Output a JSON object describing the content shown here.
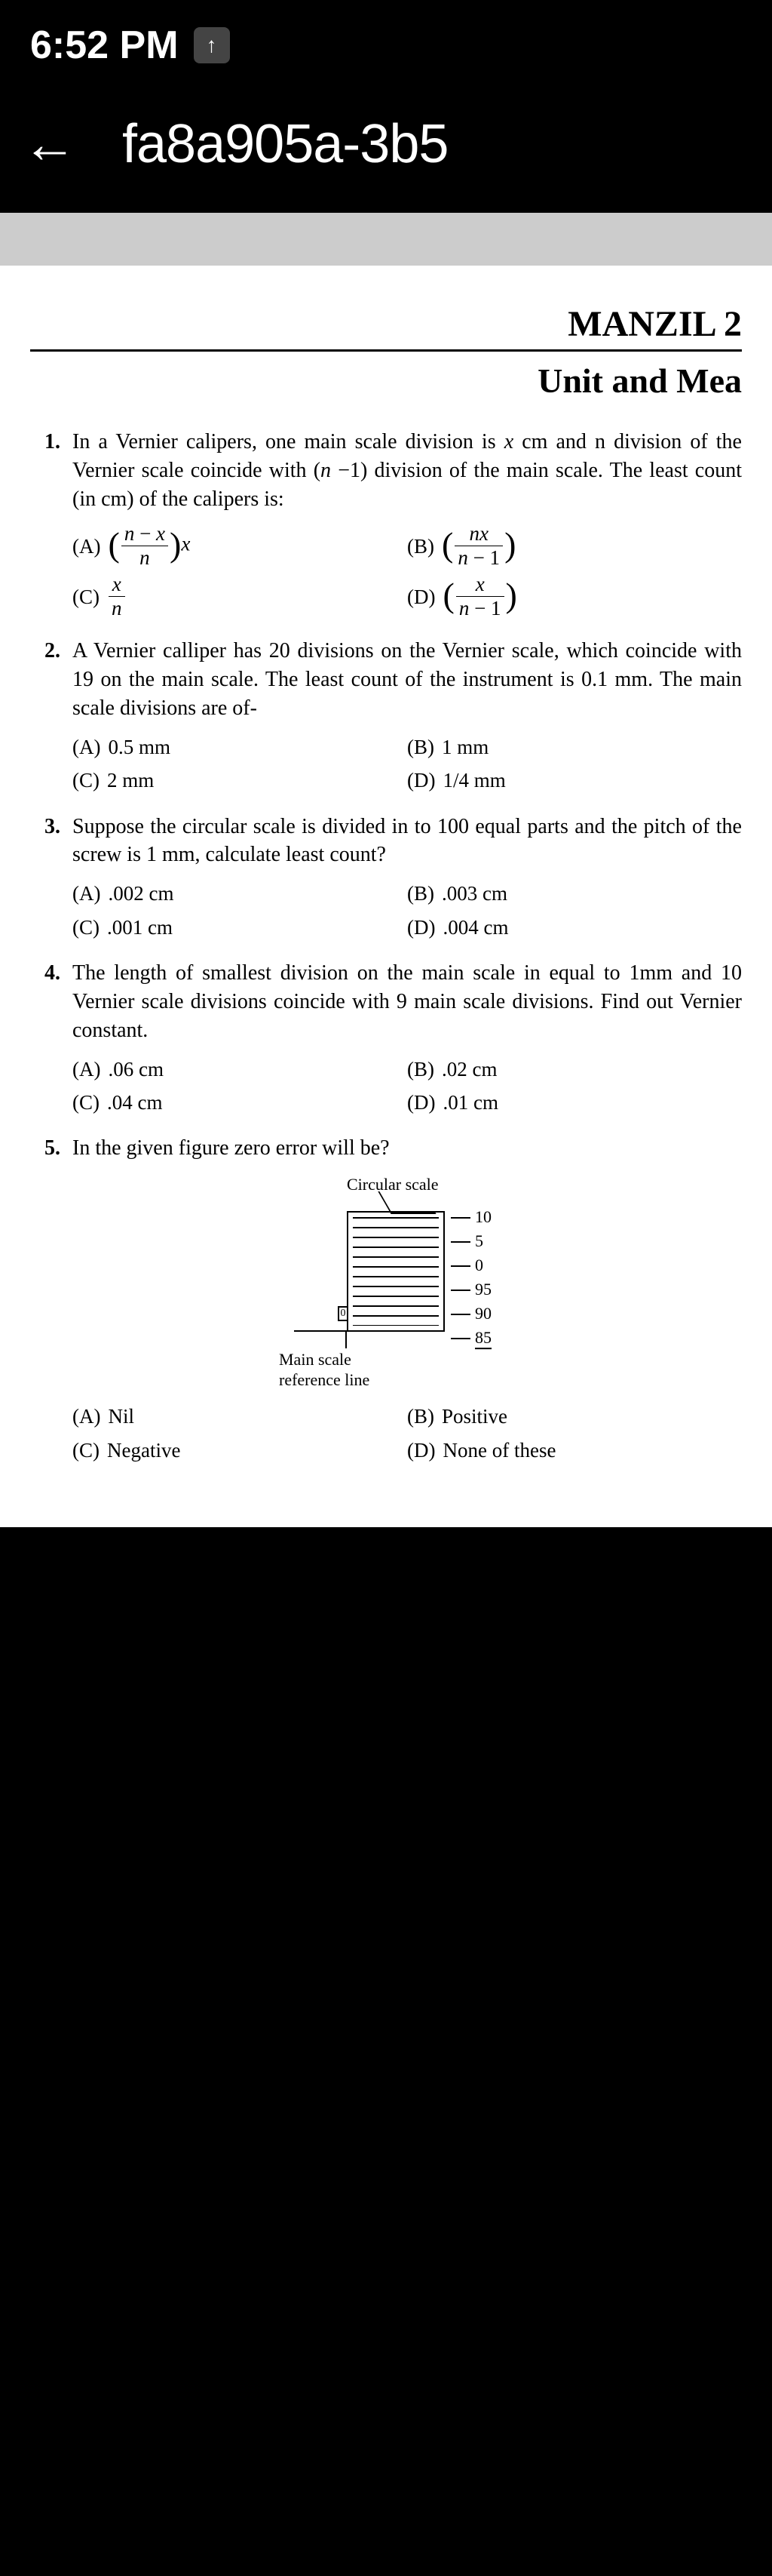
{
  "statusbar": {
    "time": "6:52 PM",
    "upload_icon": "↑"
  },
  "navbar": {
    "back": "←",
    "filename": "fa8a905a-3b5"
  },
  "headings": {
    "title": "MANZIL 2",
    "subtitle": "Unit and Mea"
  },
  "questions": [
    {
      "num": "1.",
      "text": "In a Vernier calipers, one main scale division is <span class='italic'>x</span> cm and n division of the Vernier scale coincide with (<span class='italic'>n</span> −1) division of the main scale. The least count (in cm) of the calipers is:",
      "opts": [
        {
          "label": "(A)",
          "html": "<span class='paren'>(</span><span class='frac'><span class='num'><span class='italic'>n</span> − <span class='italic'>x</span></span><span class='den italic'>n</span></span><span class='paren'>)</span><span class='italic'>x</span>"
        },
        {
          "label": "(B)",
          "html": "<span class='paren'>(</span><span class='frac'><span class='num italic'>nx</span><span class='den'><span class='italic'>n</span> − 1</span></span><span class='paren'>)</span>"
        },
        {
          "label": "(C)",
          "html": "<span class='frac'><span class='num italic'>x</span><span class='den italic'>n</span></span>"
        },
        {
          "label": "(D)",
          "html": "<span class='paren'>(</span><span class='frac'><span class='num italic'>x</span><span class='den'><span class='italic'>n</span> − 1</span></span><span class='paren'>)</span>"
        }
      ]
    },
    {
      "num": "2.",
      "text": "A Vernier calliper has 20 divisions on the Vernier scale, which coincide with 19 on the main scale. The least count of the instrument is 0.1 mm. The main scale divisions are of-",
      "opts": [
        {
          "label": "(A)",
          "html": "0.5 mm"
        },
        {
          "label": "(B)",
          "html": "1 mm"
        },
        {
          "label": "(C)",
          "html": "2 mm"
        },
        {
          "label": "(D)",
          "html": "1/4 mm"
        }
      ]
    },
    {
      "num": "3.",
      "text": "Suppose the circular scale is divided in to 100 equal parts and the pitch of the screw is 1 mm, calculate least count?",
      "opts": [
        {
          "label": "(A)",
          "html": ".002 cm"
        },
        {
          "label": "(B)",
          "html": ".003 cm"
        },
        {
          "label": "(C)",
          "html": ".001 cm"
        },
        {
          "label": "(D)",
          "html": ".004 cm"
        }
      ]
    },
    {
      "num": "4.",
      "text": "The length of smallest division on the main scale in equal to 1mm and 10 Vernier scale divisions coincide with 9 main scale divisions. Find out Vernier constant.",
      "opts": [
        {
          "label": "(A)",
          "html": ".06 cm"
        },
        {
          "label": "(B)",
          "html": ".02 cm"
        },
        {
          "label": "(C)",
          "html": ".04 cm"
        },
        {
          "label": "(D)",
          "html": ".01 cm"
        }
      ]
    },
    {
      "num": "5.",
      "text": "In the given figure zero error will be?",
      "figure": true,
      "opts": [
        {
          "label": "(A)",
          "html": "Nil"
        },
        {
          "label": "(B)",
          "html": "Positive"
        },
        {
          "label": "(C)",
          "html": "Negative"
        },
        {
          "label": "(D)",
          "html": "None of these"
        }
      ]
    }
  ],
  "figure": {
    "top_label": "Circular scale",
    "scale_values": [
      "10",
      "5",
      "0",
      "95",
      "90",
      "85"
    ],
    "scale_positions": [
      18,
      50,
      82,
      114,
      146,
      178
    ],
    "ref_label": "Main scale\nreference line",
    "ref_box": "0"
  },
  "styling": {
    "page_bg": "#ffffff",
    "black_bg": "#000000",
    "gray_band": "#cccccc",
    "body_font_size": 28,
    "heading_font_size": 48,
    "option_font_size": 27
  }
}
